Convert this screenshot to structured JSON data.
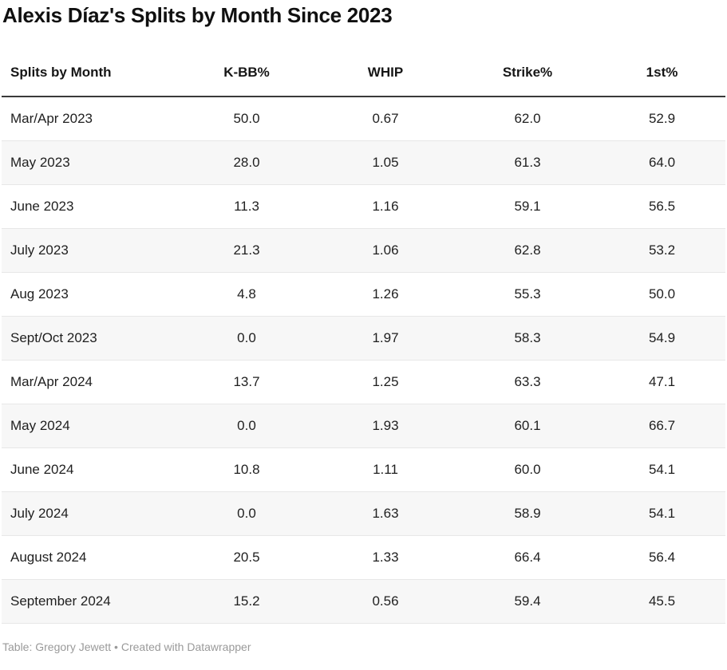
{
  "title": "Alexis Díaz's Splits by Month Since 2023",
  "footer": "Table: Gregory Jewett • Created with Datawrapper",
  "table": {
    "columns": [
      "Splits by Month",
      "K-BB%",
      "WHIP",
      "Strike%",
      "1st%"
    ],
    "rows": [
      [
        "Mar/Apr 2023",
        "50.0",
        "0.67",
        "62.0",
        "52.9"
      ],
      [
        "May 2023",
        "28.0",
        "1.05",
        "61.3",
        "64.0"
      ],
      [
        "June 2023",
        "11.3",
        "1.16",
        "59.1",
        "56.5"
      ],
      [
        "July 2023",
        "21.3",
        "1.06",
        "62.8",
        "53.2"
      ],
      [
        "Aug 2023",
        "4.8",
        "1.26",
        "55.3",
        "50.0"
      ],
      [
        "Sept/Oct 2023",
        "0.0",
        "1.97",
        "58.3",
        "54.9"
      ],
      [
        "Mar/Apr 2024",
        "13.7",
        "1.25",
        "63.3",
        "47.1"
      ],
      [
        "May 2024",
        "0.0",
        "1.93",
        "60.1",
        "66.7"
      ],
      [
        "June 2024",
        "10.8",
        "1.11",
        "60.0",
        "54.1"
      ],
      [
        "July 2024",
        "0.0",
        "1.63",
        "58.9",
        "54.1"
      ],
      [
        "August 2024",
        "20.5",
        "1.33",
        "66.4",
        "56.4"
      ],
      [
        "September 2024",
        "15.2",
        "0.56",
        "59.4",
        "45.5"
      ]
    ]
  },
  "chart_data": {
    "type": "table",
    "title": "Alexis Díaz's Splits by Month Since 2023",
    "columns": [
      "Splits by Month",
      "K-BB%",
      "WHIP",
      "Strike%",
      "1st%"
    ],
    "rows": [
      [
        "Mar/Apr 2023",
        50.0,
        0.67,
        62.0,
        52.9
      ],
      [
        "May 2023",
        28.0,
        1.05,
        61.3,
        64.0
      ],
      [
        "June 2023",
        11.3,
        1.16,
        59.1,
        56.5
      ],
      [
        "July 2023",
        21.3,
        1.06,
        62.8,
        53.2
      ],
      [
        "Aug 2023",
        4.8,
        1.26,
        55.3,
        50.0
      ],
      [
        "Sept/Oct 2023",
        0.0,
        1.97,
        58.3,
        54.9
      ],
      [
        "Mar/Apr 2024",
        13.7,
        1.25,
        63.3,
        47.1
      ],
      [
        "May 2024",
        0.0,
        1.93,
        60.1,
        66.7
      ],
      [
        "June 2024",
        10.8,
        1.11,
        60.0,
        54.1
      ],
      [
        "July 2024",
        0.0,
        1.63,
        58.9,
        54.1
      ],
      [
        "August 2024",
        20.5,
        1.33,
        66.4,
        56.4
      ],
      [
        "September 2024",
        15.2,
        0.56,
        59.4,
        45.5
      ]
    ],
    "layout_hints": {
      "first_column_align": "left",
      "numeric_columns_align": "center",
      "row_striping": true,
      "credit_line": "Table: Gregory Jewett • Created with Datawrapper"
    }
  },
  "colors": {
    "title_text": "#101010",
    "header_text": "#161616",
    "cell_text": "#1f1f1f",
    "header_rule": "#3a3a3a",
    "row_stripe": "#f7f7f7",
    "row_separator": "#e7e7e7",
    "footer_text": "#9a9a9a",
    "background": "#ffffff"
  }
}
